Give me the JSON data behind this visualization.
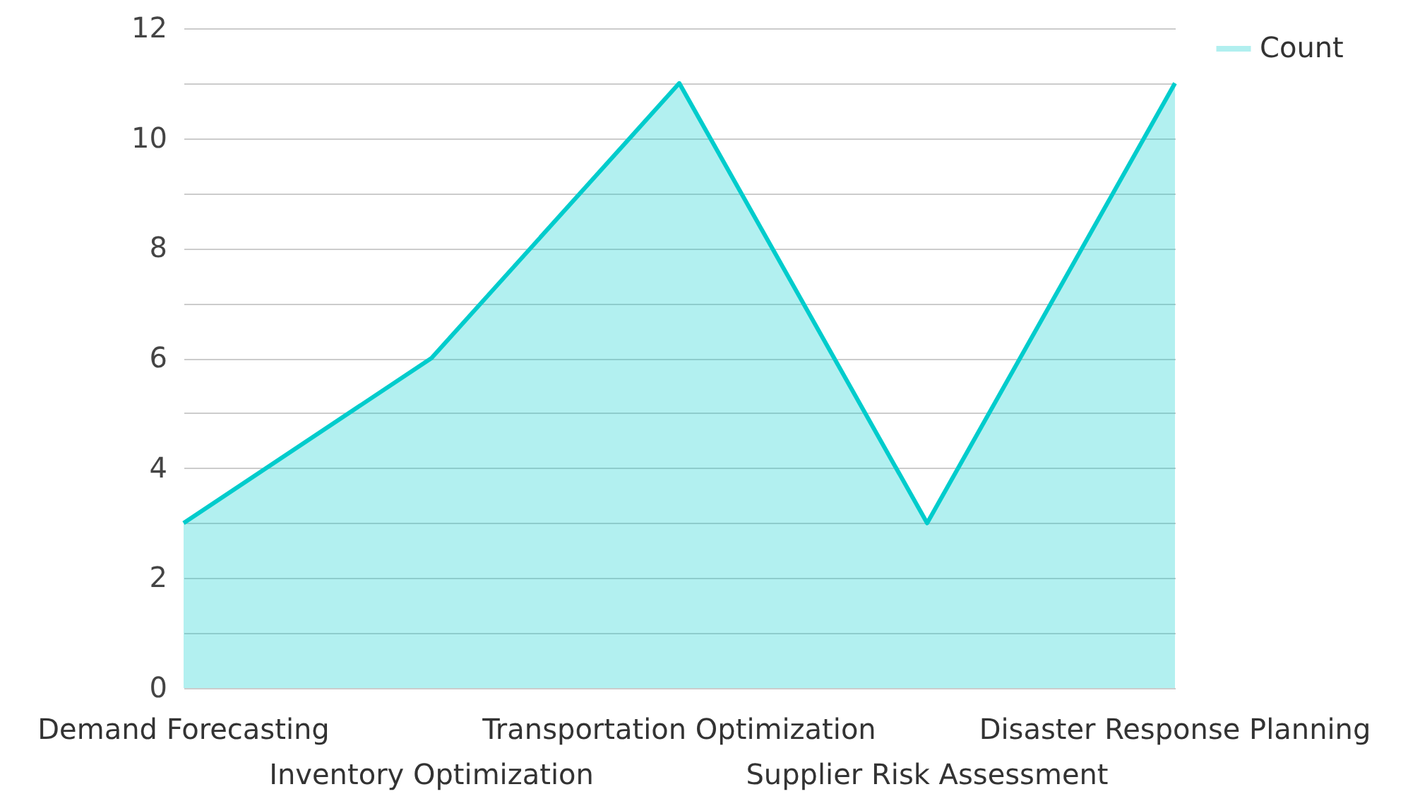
{
  "chart_data": {
    "type": "area",
    "categories": [
      "Demand Forecasting",
      "Inventory Optimization",
      "Transportation Optimization",
      "Supplier Risk Assessment",
      "Disaster Response Planning"
    ],
    "series": [
      {
        "name": "Count",
        "color": "#00cccc",
        "values": [
          3,
          6,
          11,
          3,
          11
        ]
      }
    ],
    "ylim": [
      0,
      12
    ],
    "yticks": [
      0,
      {
        "value": 1,
        "label": null
      },
      2,
      {
        "value": 3,
        "label": null
      },
      4,
      {
        "value": 5,
        "label": null
      },
      6,
      {
        "value": 7,
        "label": null
      },
      8,
      {
        "value": 9,
        "label": null
      },
      10,
      {
        "value": 11,
        "label": null
      },
      12
    ],
    "grid": "y",
    "legend": "top right",
    "marker": "none",
    "line_style": "solid"
  }
}
